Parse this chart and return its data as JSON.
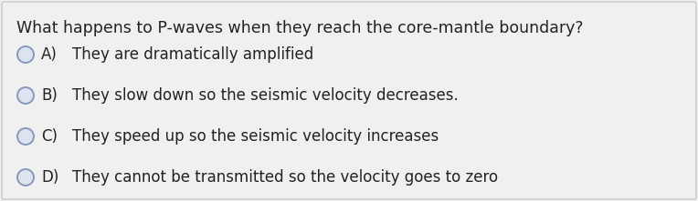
{
  "title": "What happens to P-waves when they reach the core-mantle boundary?",
  "options": [
    {
      "label": "A)",
      "text": "  They are dramatically amplified"
    },
    {
      "label": "B)",
      "text": "  They slow down so the seismic velocity decreases."
    },
    {
      "label": "C)",
      "text": "  They speed up so the seismic velocity increases"
    },
    {
      "label": "D)",
      "text": "  They cannot be transmitted so the velocity goes to zero"
    }
  ],
  "bg_color": "#f0f0f0",
  "border_color": "#c8c8c8",
  "text_color": "#222222",
  "circle_edge_color": "#8899bb",
  "circle_face_color": "#dde4f0",
  "title_fontsize": 12.5,
  "option_fontsize": 12.0,
  "fig_width": 7.64,
  "fig_height": 2.21,
  "dpi": 100
}
